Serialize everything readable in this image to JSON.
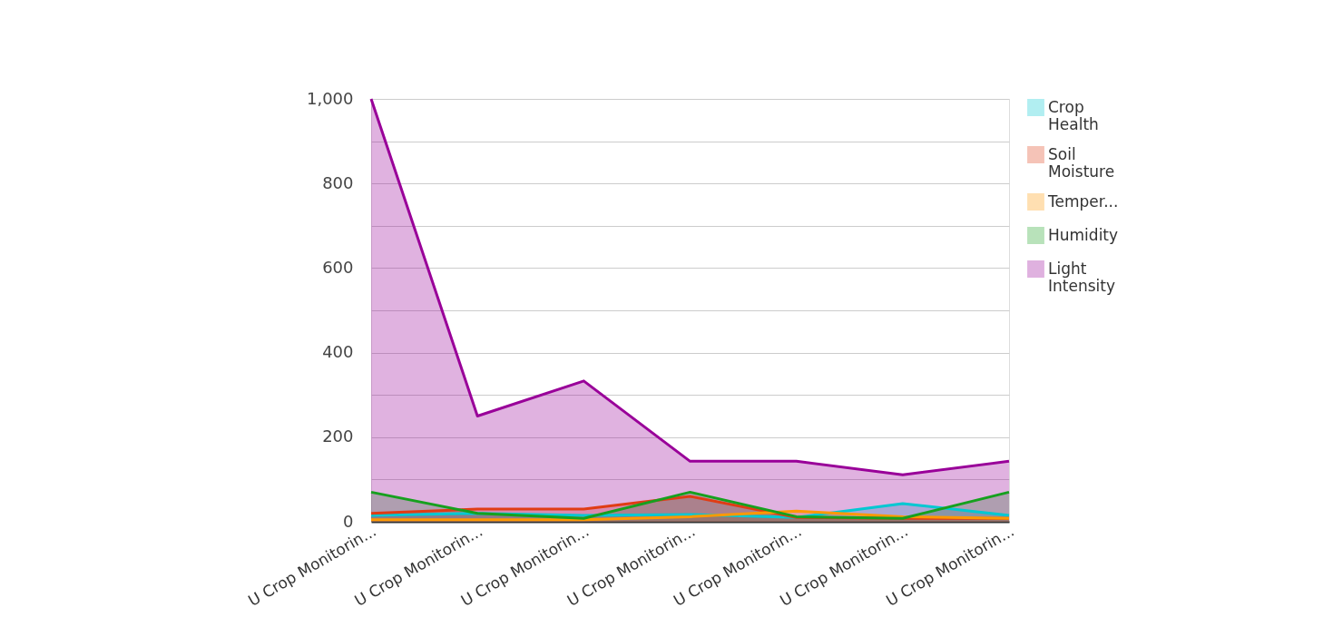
{
  "chart_data": {
    "type": "area",
    "categories": [
      "U Crop Monitorin...",
      "U Crop Monitorin...",
      "U Crop Monitorin...",
      "U Crop Monitorin...",
      "U Crop Monitorin...",
      "U Crop Monitorin...",
      "U Crop Monitorin..."
    ],
    "series": [
      {
        "name": "Crop Health",
        "color": "#00c8d2",
        "values": [
          15,
          20,
          15,
          17,
          10,
          43,
          15
        ]
      },
      {
        "name": "Soil Moisture",
        "color": "#e03c14",
        "values": [
          20,
          30,
          30,
          60,
          10,
          8,
          8
        ]
      },
      {
        "name": "Temper...",
        "color": "#ff9900",
        "values": [
          5,
          5,
          5,
          12,
          25,
          12,
          8
        ]
      },
      {
        "name": "Humidity",
        "color": "#16a01e",
        "values": [
          70,
          20,
          8,
          70,
          12,
          8,
          70
        ]
      },
      {
        "name": "Light Intensity",
        "color": "#990099",
        "values": [
          1000,
          250,
          333,
          143,
          143,
          111,
          143
        ]
      }
    ],
    "ylim": [
      0,
      1000
    ],
    "yticks": [
      0,
      {
        "value": 100,
        "label": null
      },
      200,
      {
        "value": 300,
        "label": null
      },
      400,
      {
        "value": 500,
        "label": null
      },
      600,
      {
        "value": 700,
        "label": null
      },
      800,
      {
        "value": 900,
        "label": null
      },
      {
        "value": 1000,
        "label": "1,000"
      }
    ],
    "grid": "y",
    "legend": "right"
  }
}
